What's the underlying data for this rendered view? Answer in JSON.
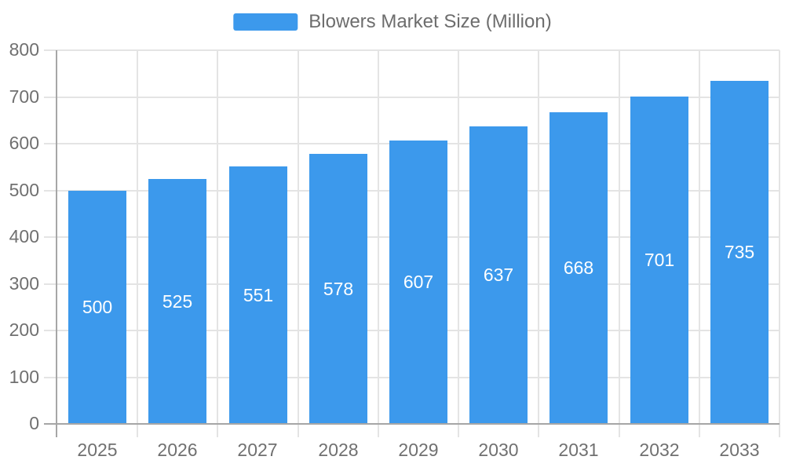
{
  "legend": {
    "label": "Blowers Market Size (Million)"
  },
  "colors": {
    "bar": "#3C99EC",
    "bar_label_text": "#FFFFFF",
    "axis": "#A6A6A6",
    "grid": "#E4E4E4",
    "tick_text": "#707070",
    "legend_text": "#6D6D6D",
    "background": "#FFFFFF"
  },
  "chart_data": {
    "type": "bar",
    "title": "Blowers Market Size (Million)",
    "categories": [
      "2025",
      "2026",
      "2027",
      "2028",
      "2029",
      "2030",
      "2031",
      "2032",
      "2033"
    ],
    "values": [
      500,
      525,
      551,
      578,
      607,
      637,
      668,
      701,
      735
    ],
    "xlabel": "",
    "ylabel": "",
    "ylim": [
      0,
      800
    ],
    "ytick_step": 100,
    "yticks": [
      0,
      100,
      200,
      300,
      400,
      500,
      600,
      700,
      800
    ],
    "grid": true,
    "legend_position": "top-center",
    "bar_value_labels": true
  }
}
